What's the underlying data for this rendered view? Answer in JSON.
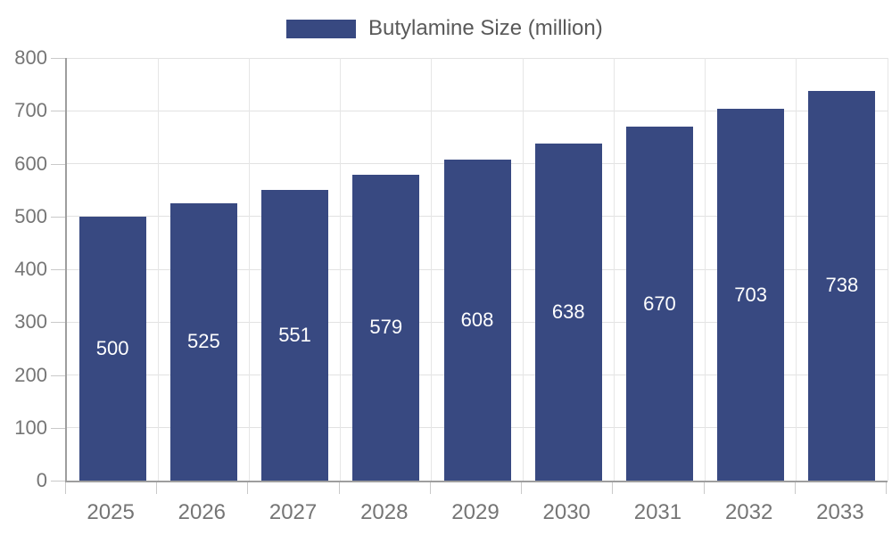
{
  "legend": {
    "label": "Butylamine Size (million)"
  },
  "chart_data": {
    "type": "bar",
    "title": "",
    "xlabel": "",
    "ylabel": "",
    "categories": [
      "2025",
      "2026",
      "2027",
      "2028",
      "2029",
      "2030",
      "2031",
      "2032",
      "2033"
    ],
    "values": [
      500,
      525,
      551,
      579,
      608,
      638,
      670,
      703,
      738
    ],
    "series_name": "Butylamine Size (million)",
    "ylim": [
      0,
      800
    ],
    "yticks": [
      0,
      100,
      200,
      300,
      400,
      500,
      600,
      700,
      800
    ],
    "grid": true,
    "legend_position": "top-center",
    "value_labels": "inside-center",
    "colors": {
      "bar": "#384981",
      "value_label": "#ffffff",
      "axis_line": "#9e9e9e",
      "gridline": "#e2e2e2",
      "tick_text": "#757575",
      "legend_text": "#595959"
    }
  }
}
